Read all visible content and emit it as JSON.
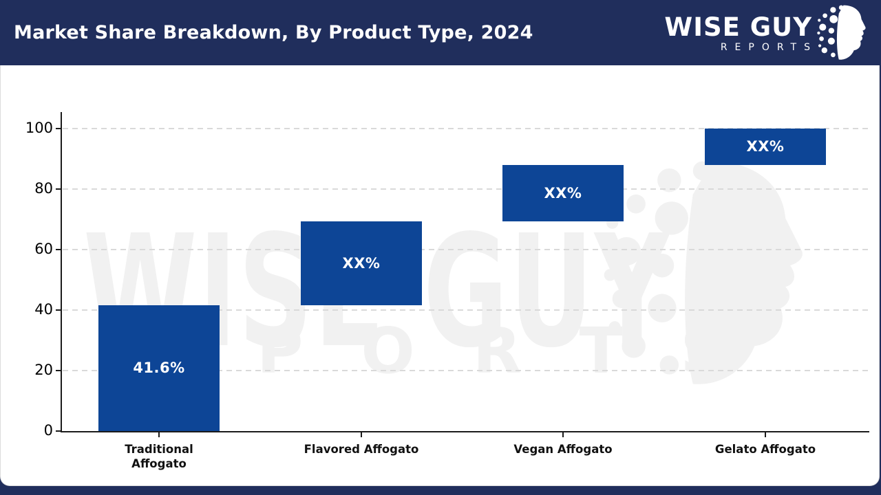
{
  "header": {
    "title": "Market Share Breakdown, By Product Type, 2024",
    "logo": {
      "line1": "WISE GUY",
      "line2": "REPORTS"
    }
  },
  "watermark": {
    "line1": "WISE GUY",
    "line2": "P O R T S"
  },
  "colors": {
    "header_navy": "#202e5c",
    "footer_navy": "#202e5c",
    "bar_blue": "#0d4596",
    "bar_label_white": "#ffffff",
    "gridline_gray": "#d9d9d9",
    "watermark_gray": "#f1f1f1",
    "axis_black": "#1a1a1a"
  },
  "chart_data": {
    "type": "bar",
    "subtype": "waterfall",
    "title": "Market Share Breakdown, By Product Type, 2024",
    "xlabel": "",
    "ylabel": "",
    "categories": [
      "Traditional Affogato",
      "Flavored Affogato",
      "Vegan Affogato",
      "Gelato Affogato"
    ],
    "category_display": [
      "Traditional\nAffogato",
      "Flavored Affogato",
      "Vegan Affogato",
      "Gelato Affogato"
    ],
    "bar_ranges": [
      [
        0,
        41.6
      ],
      [
        41.6,
        69.3
      ],
      [
        69.3,
        88.0
      ],
      [
        88.0,
        100
      ]
    ],
    "bar_labels": [
      "41.6%",
      "XX%",
      "XX%",
      "XX%"
    ],
    "ylim": [
      0,
      100
    ],
    "yticks": [
      0,
      20,
      40,
      60,
      80,
      100
    ],
    "grid": "horizontal dashed",
    "legend": "none"
  }
}
